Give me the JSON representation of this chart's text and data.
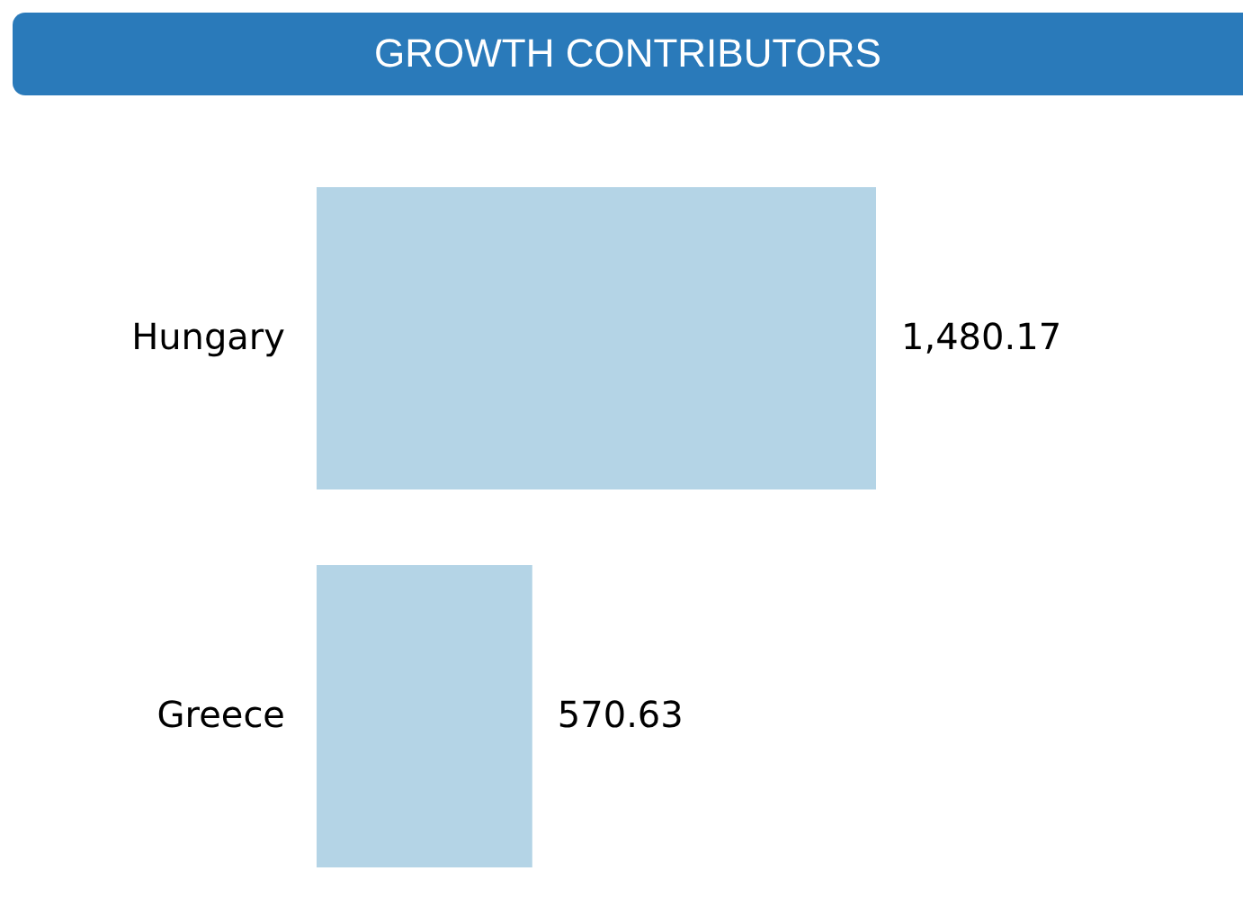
{
  "chart_data": {
    "type": "bar",
    "orientation": "horizontal",
    "title": "GROWTH CONTRIBUTORS",
    "categories": [
      "Hungary",
      "Greece"
    ],
    "values": [
      1480.17,
      570.63
    ],
    "value_labels": [
      "1,480.17",
      "570.63"
    ],
    "color": "#b4d4e6"
  }
}
